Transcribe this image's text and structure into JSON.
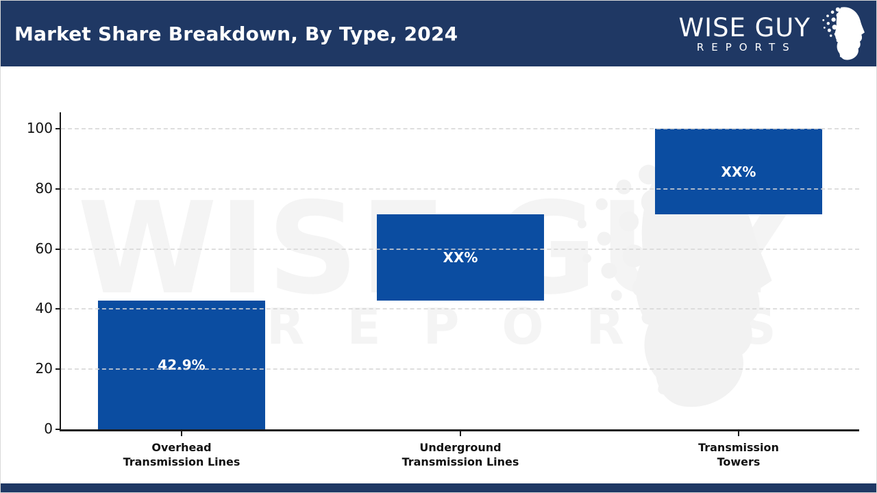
{
  "header": {
    "title": "Market Share Breakdown, By Type, 2024"
  },
  "logo": {
    "name_top": "WISE GUY",
    "name_bottom": "REPORTS"
  },
  "watermark": {
    "line1": "WISE GUY",
    "line2": "REPORTS"
  },
  "colors": {
    "header_bg": "#1F3864",
    "footer_bg": "#1F3864",
    "bar": "#0B4DA1",
    "bar_label": "#FFFFFF",
    "axis": "#1A1A1A",
    "grid": "#D6D6D6",
    "watermark": "#F4F4F4",
    "page_bg": "#FFFFFF"
  },
  "chart_data": {
    "type": "bar",
    "variant": "waterfall-stacked-segments",
    "title": "Market Share Breakdown, By Type, 2024",
    "categories": [
      "Overhead Transmission Lines",
      "Underground Transmission Lines",
      "Transmission Towers"
    ],
    "category_label_lines": [
      [
        "Overhead",
        "Transmission Lines"
      ],
      [
        "Underground",
        "Transmission Lines"
      ],
      [
        "Transmission",
        "Towers"
      ]
    ],
    "segments": [
      {
        "category": "Overhead Transmission Lines",
        "start": 0,
        "end": 42.9,
        "label": "42.9%"
      },
      {
        "category": "Underground Transmission Lines",
        "start": 42.9,
        "end": 71.5,
        "label": "XX%"
      },
      {
        "category": "Transmission Towers",
        "start": 71.5,
        "end": 100,
        "label": "XX%"
      }
    ],
    "yticks": [
      0,
      20,
      40,
      60,
      80,
      100
    ],
    "ylim": [
      0,
      100
    ],
    "xlabel": "",
    "ylabel": "",
    "grid": "horizontal-dashed",
    "legend": "none"
  }
}
